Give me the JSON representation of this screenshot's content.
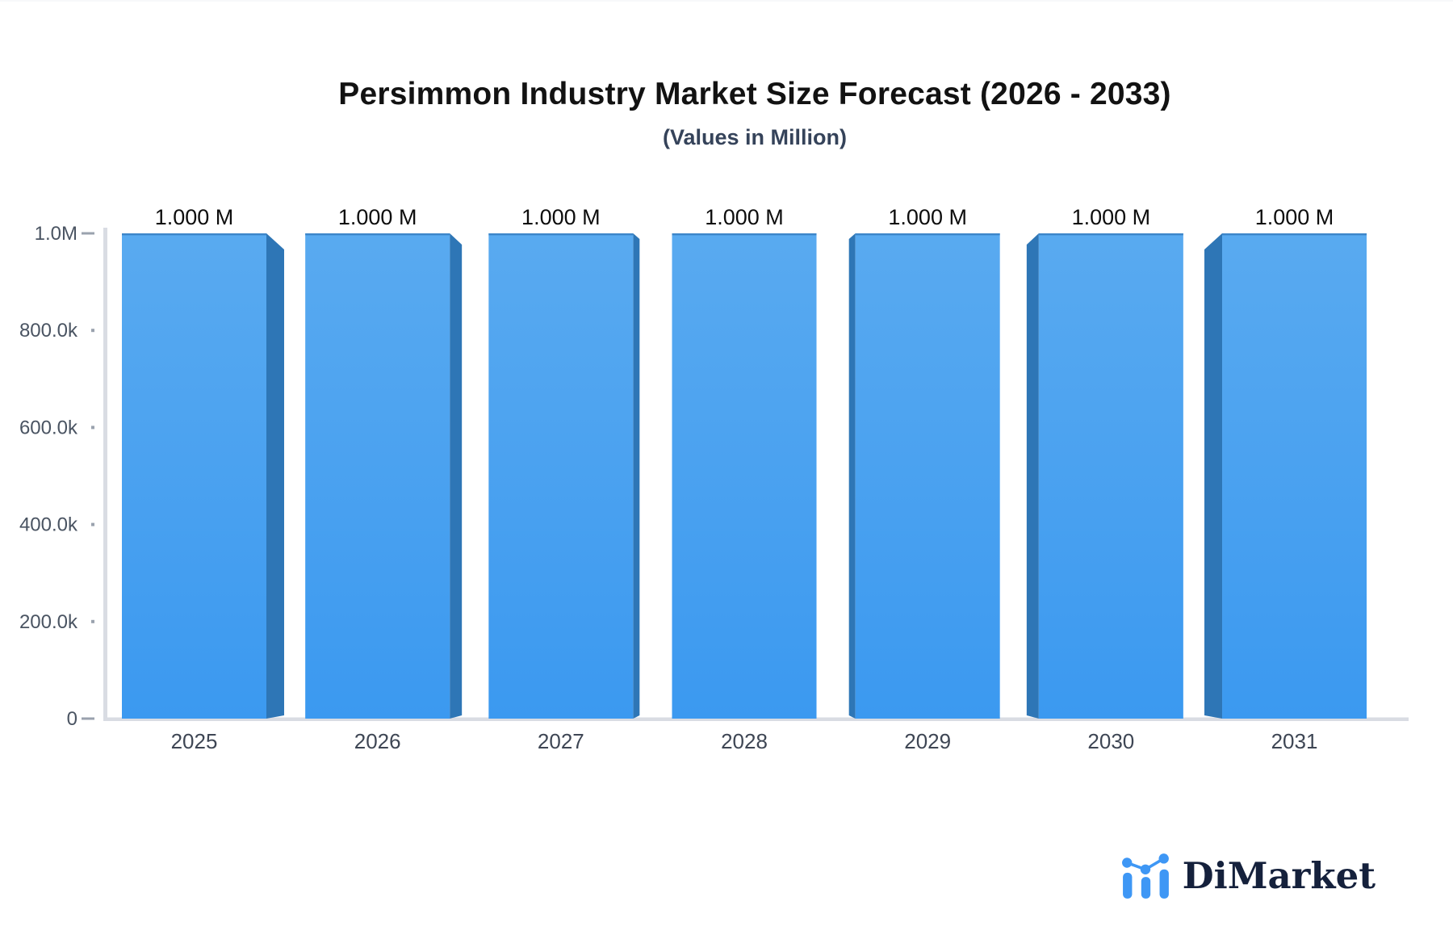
{
  "chart_data": {
    "type": "bar",
    "title": "Persimmon Industry Market Size Forecast (2026 - 2033)",
    "subtitle": "(Values in Million)",
    "categories": [
      "2025",
      "2026",
      "2027",
      "2028",
      "2029",
      "2030",
      "2031"
    ],
    "values": [
      1000000,
      1000000,
      1000000,
      1000000,
      1000000,
      1000000,
      1000000
    ],
    "bar_value_labels": [
      "1.000 M",
      "1.000 M",
      "1.000 M",
      "1.000 M",
      "1.000 M",
      "1.000 M",
      "1.000 M"
    ],
    "y_axis": {
      "ylim": [
        0,
        1000000
      ],
      "ticks": [
        {
          "value": 0,
          "label": "0"
        },
        {
          "value": 200000,
          "label": "200.0k"
        },
        {
          "value": 400000,
          "label": "400.0k"
        },
        {
          "value": 600000,
          "label": "600.0k"
        },
        {
          "value": 800000,
          "label": "800.0k"
        },
        {
          "value": 1000000,
          "label": "1.0M"
        }
      ]
    },
    "xlabel": "",
    "ylabel": "",
    "grid": "off",
    "legend": "none",
    "style": {
      "bar_face_top": "#59aaf0",
      "bar_face_bottom": "#3b99f0",
      "bar_top_edge": "#3d86c9",
      "bar_side": "#2e76b6",
      "axis_line": "#d9dce3",
      "tick_mark": "#9aa2ae",
      "y_label_color": "#4a5462",
      "x_label_color": "#3e4654",
      "value_label_color": "#0d0d0d"
    }
  },
  "branding": {
    "name": "DiMarket",
    "icon": "bar-line-chart-icon",
    "icon_color": "#3e97f5",
    "text_color": "#15213c"
  }
}
